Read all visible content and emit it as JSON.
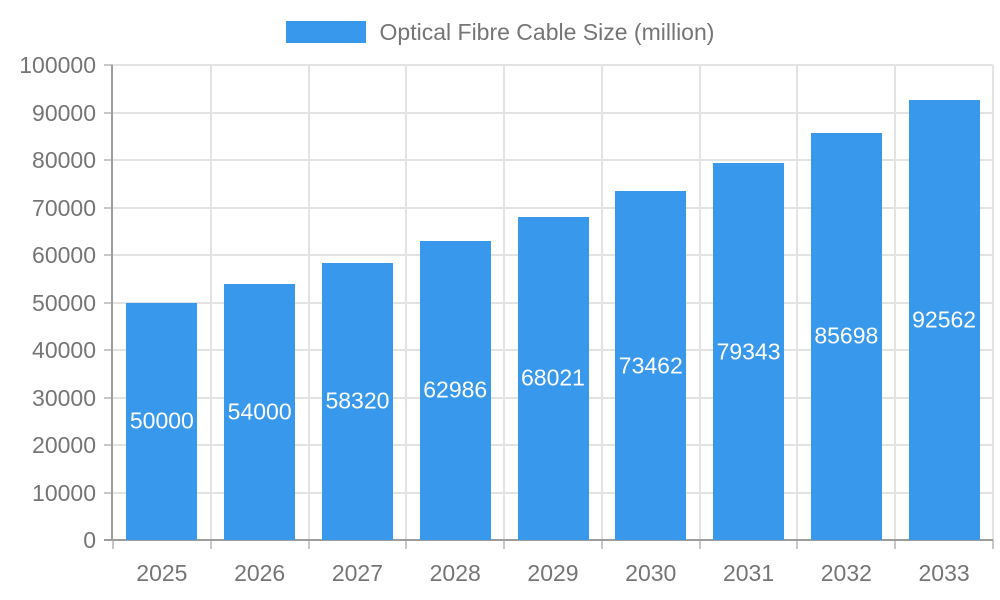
{
  "chart_data": {
    "type": "bar",
    "title": "Optical Fibre Cable Size (million)",
    "legend": {
      "label": "Optical Fibre Cable Size (million)",
      "position": "top"
    },
    "categories": [
      "2025",
      "2026",
      "2027",
      "2028",
      "2029",
      "2030",
      "2031",
      "2032",
      "2033"
    ],
    "series": [
      {
        "name": "Optical Fibre Cable Size (million)",
        "values": [
          50000,
          54000,
          58320,
          62986,
          68021,
          73462,
          79343,
          85698,
          92562
        ]
      }
    ],
    "bar_value_labels": [
      "50000",
      "54000",
      "58320",
      "62986",
      "68021",
      "73462",
      "79343",
      "85698",
      "92562"
    ],
    "xlabel": "",
    "ylabel": "",
    "ylim": [
      0,
      100000
    ],
    "y_ticks": [
      0,
      10000,
      20000,
      30000,
      40000,
      50000,
      60000,
      70000,
      80000,
      90000,
      100000
    ],
    "grid": true,
    "colors": {
      "bar": "#3898ec",
      "bar_label": "#ffffff",
      "axis_text": "#757575",
      "gridline": "#e3e3e3",
      "axis_line": "#9d9d9d",
      "tick": "#c9c9c9",
      "background": "#ffffff"
    }
  }
}
